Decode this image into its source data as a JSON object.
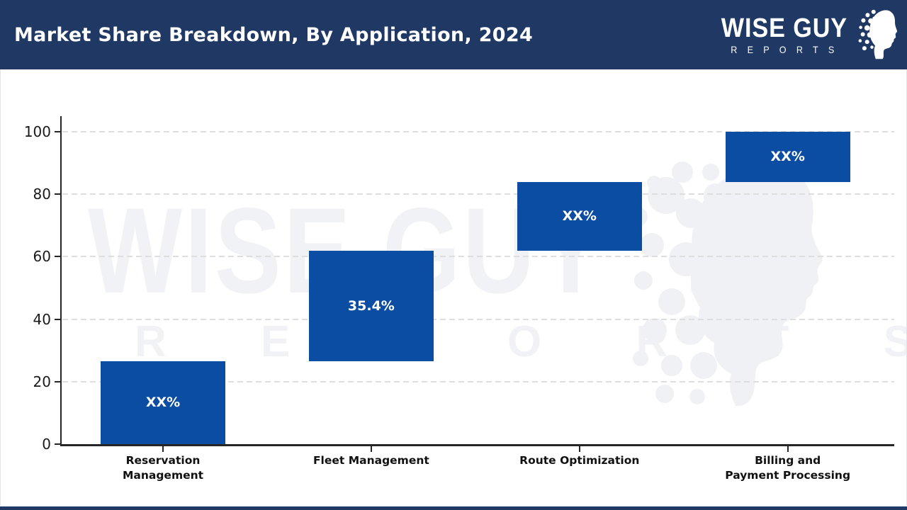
{
  "header": {
    "title": "Market Share Breakdown, By Application, 2024",
    "logo_line1": "WISE GUY",
    "logo_line2": "R E P O R T S",
    "logo_icon": "head-profile-dots-icon",
    "background_color": "#1f3864"
  },
  "watermark": {
    "line1": "WISE GUY",
    "line2": "R E P O R T S",
    "face_icon": "head-profile-dots-watermark"
  },
  "footer": {
    "accent_color": "#1f3864"
  },
  "chart_data": {
    "type": "bar",
    "subtype": "floating-waterfall",
    "title": "Market Share Breakdown, By Application, 2024",
    "categories": [
      [
        "Reservation",
        "Management"
      ],
      [
        "Fleet Management"
      ],
      [
        "Route Optimization"
      ],
      [
        "Billing and",
        "Payment Processing"
      ]
    ],
    "bars": [
      {
        "category": "Reservation Management",
        "start": 0,
        "end": 26.6,
        "label": "XX%"
      },
      {
        "category": "Fleet Management",
        "start": 26.6,
        "end": 62.0,
        "label": "35.4%"
      },
      {
        "category": "Route Optimization",
        "start": 62.0,
        "end": 84.0,
        "label": "XX%"
      },
      {
        "category": "Billing and Payment Processing",
        "start": 84.0,
        "end": 100.0,
        "label": "XX%"
      }
    ],
    "xlabel": "",
    "ylabel": "",
    "ylim": [
      0,
      105
    ],
    "yticks": [
      0,
      20,
      40,
      60,
      80,
      100
    ],
    "grid": "dashed-horizontal",
    "legend": "none",
    "bar_color": "#0b4da2",
    "bar_label_color": "#ffffff"
  }
}
